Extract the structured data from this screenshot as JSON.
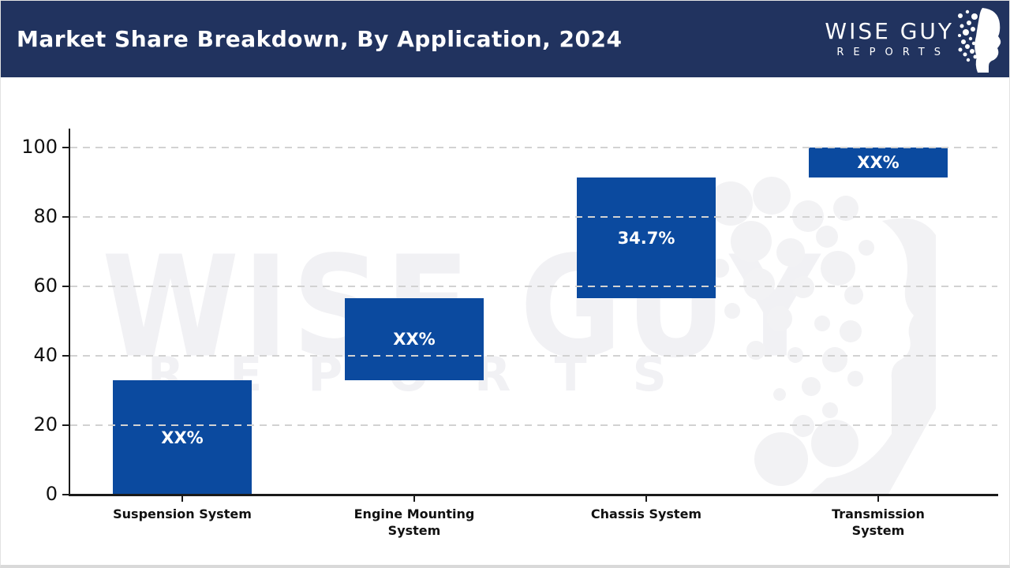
{
  "header": {
    "title": "Market Share Breakdown, By Application, 2024",
    "logo": {
      "line1": "WISE GUY",
      "line2": "REPORTS"
    }
  },
  "watermark": {
    "line1": "WISE GUY",
    "line2": "REPORTS"
  },
  "chart_data": {
    "type": "bar",
    "subtype": "floating-waterfall",
    "title": "Market Share Breakdown, By Application, 2024",
    "xlabel": "",
    "ylabel": "",
    "ylim": [
      0,
      105
    ],
    "yticks": [
      0,
      20,
      40,
      60,
      80,
      100
    ],
    "grid": "horizontal-dashed-above-bars",
    "legend": "none",
    "categories": [
      "Suspension System",
      "Engine Mounting System",
      "Chassis System",
      "Transmission System"
    ],
    "category_display_lines": [
      [
        "Suspension System"
      ],
      [
        "Engine Mounting",
        "System"
      ],
      [
        "Chassis System"
      ],
      [
        "Transmission",
        "System"
      ]
    ],
    "series": [
      {
        "name": "Market Share",
        "segments": [
          {
            "category": "Suspension System",
            "start": 0,
            "end": 32.9,
            "value": 32.9,
            "label": "XX%"
          },
          {
            "category": "Engine Mounting System",
            "start": 32.9,
            "end": 56.6,
            "value": 23.7,
            "label": "XX%"
          },
          {
            "category": "Chassis System",
            "start": 56.6,
            "end": 91.3,
            "value": 34.7,
            "label": "34.7%"
          },
          {
            "category": "Transmission System",
            "start": 91.3,
            "end": 100,
            "value": 8.7,
            "label": "XX%"
          }
        ]
      }
    ],
    "colors": {
      "bar": "#0b4a9f",
      "bar_label": "#ffffff",
      "header_bg": "#21335f",
      "grid": "#d2d2d2",
      "axis": "#1a1a1a",
      "watermark": "#f1f1f4"
    }
  }
}
